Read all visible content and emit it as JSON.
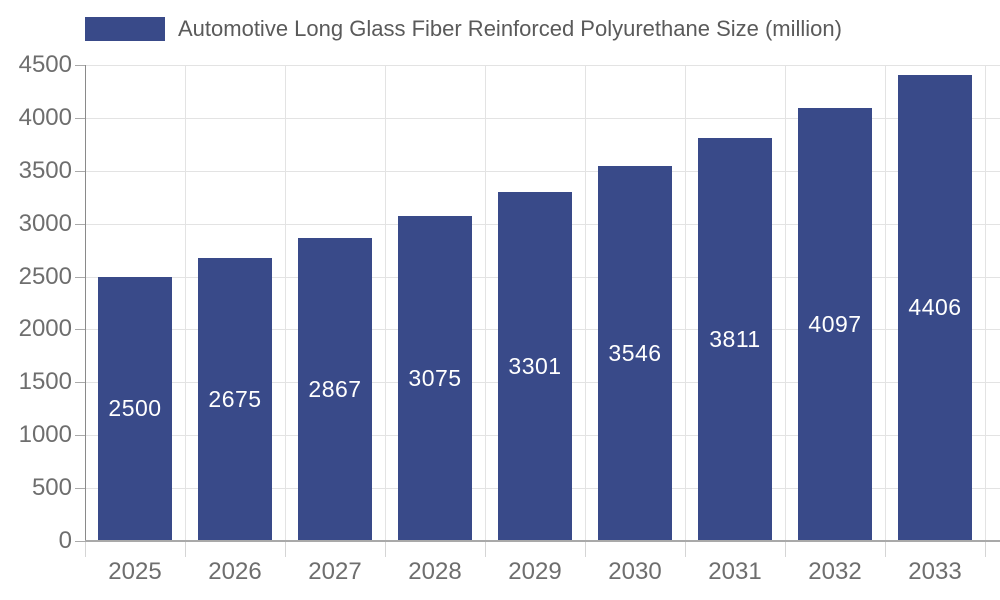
{
  "chart_data": {
    "type": "bar",
    "title": "Automotive Long Glass Fiber Reinforced Polyurethane Size (million)",
    "legend": {
      "label": "Automotive Long Glass Fiber Reinforced Polyurethane Size (million)",
      "position": "top-left"
    },
    "categories": [
      "2025",
      "2026",
      "2027",
      "2028",
      "2029",
      "2030",
      "2031",
      "2032",
      "2033"
    ],
    "values": [
      2500,
      2675,
      2867,
      3075,
      3301,
      3546,
      3811,
      4097,
      4406
    ],
    "xlabel": "",
    "ylabel": "",
    "ylim": [
      0,
      4500
    ],
    "yticks": [
      0,
      500,
      1000,
      1500,
      2000,
      2500,
      3000,
      3500,
      4000,
      4500
    ],
    "grid": true,
    "value_labels_shown": true,
    "colors": {
      "bar": "#394A89",
      "value_label": "#FFFFFF",
      "axis_tick_label": "#6E6E6E",
      "legend_text": "#5A5A5A",
      "gridline": "#E3E3E3",
      "y_axis_line": "#8A8A8A",
      "x_axis_line": "#A9A9A9",
      "y_tick": "#AAAAAA",
      "x_tick": "#D5D5D5",
      "background": "#FFFFFF"
    }
  }
}
